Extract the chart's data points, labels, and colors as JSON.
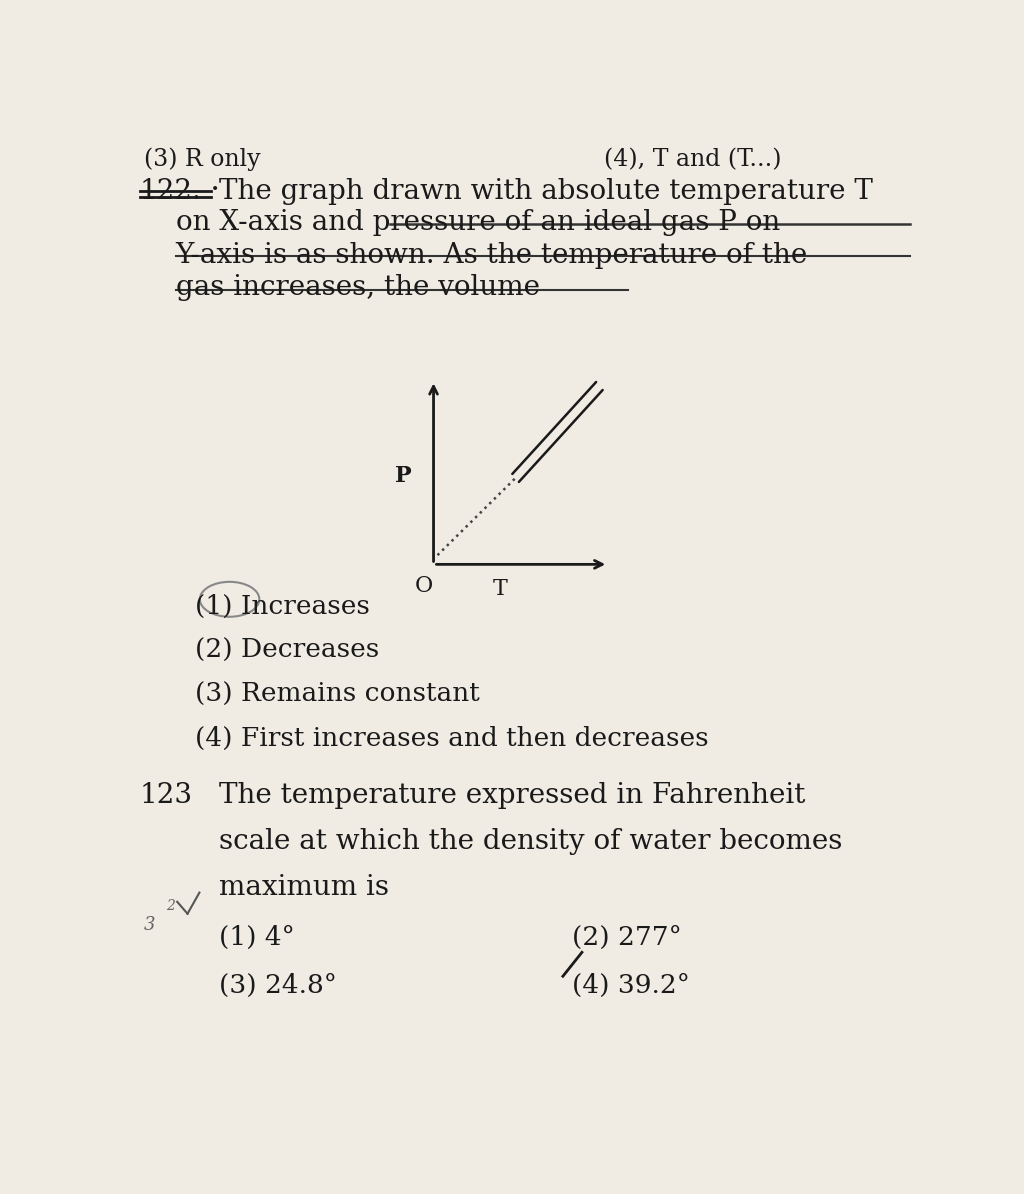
{
  "background_color": "#f0ece4",
  "line1": "The graph drawn with absolute temperature T",
  "line2": "on X-axis and pressure of an ideal gas P on",
  "line3": "Y-axis is as shown. As the temperature of the",
  "line4": "gas increases, the volume",
  "top_partial_line": "(3) R only",
  "top_partial_right": "(4), T and (T...)",
  "options": [
    "(1) Increases",
    "(2) Decreases",
    "(3) Remains constant",
    "(4) First increases and then decreases"
  ],
  "q123_line1": "The temperature expressed in Fahrenheit",
  "q123_line2": "scale at which the density of water becomes",
  "q123_line3": "maximum is",
  "q123_opts_left": [
    "(1) 4°",
    "(3) 24.8°"
  ],
  "q123_opts_right": [
    "(2) 277°",
    "(4) 39.2°"
  ],
  "graph": {
    "origin_label": "O",
    "x_label": "T",
    "y_label": "P",
    "axis_color": "#1a1a1a",
    "line_color": "#1a1a1a",
    "dashed_color": "#444444"
  },
  "fs_large": 20,
  "fs_med": 19,
  "fs_small": 17,
  "fs_graph": 16,
  "text_color": "#1a1a1a"
}
